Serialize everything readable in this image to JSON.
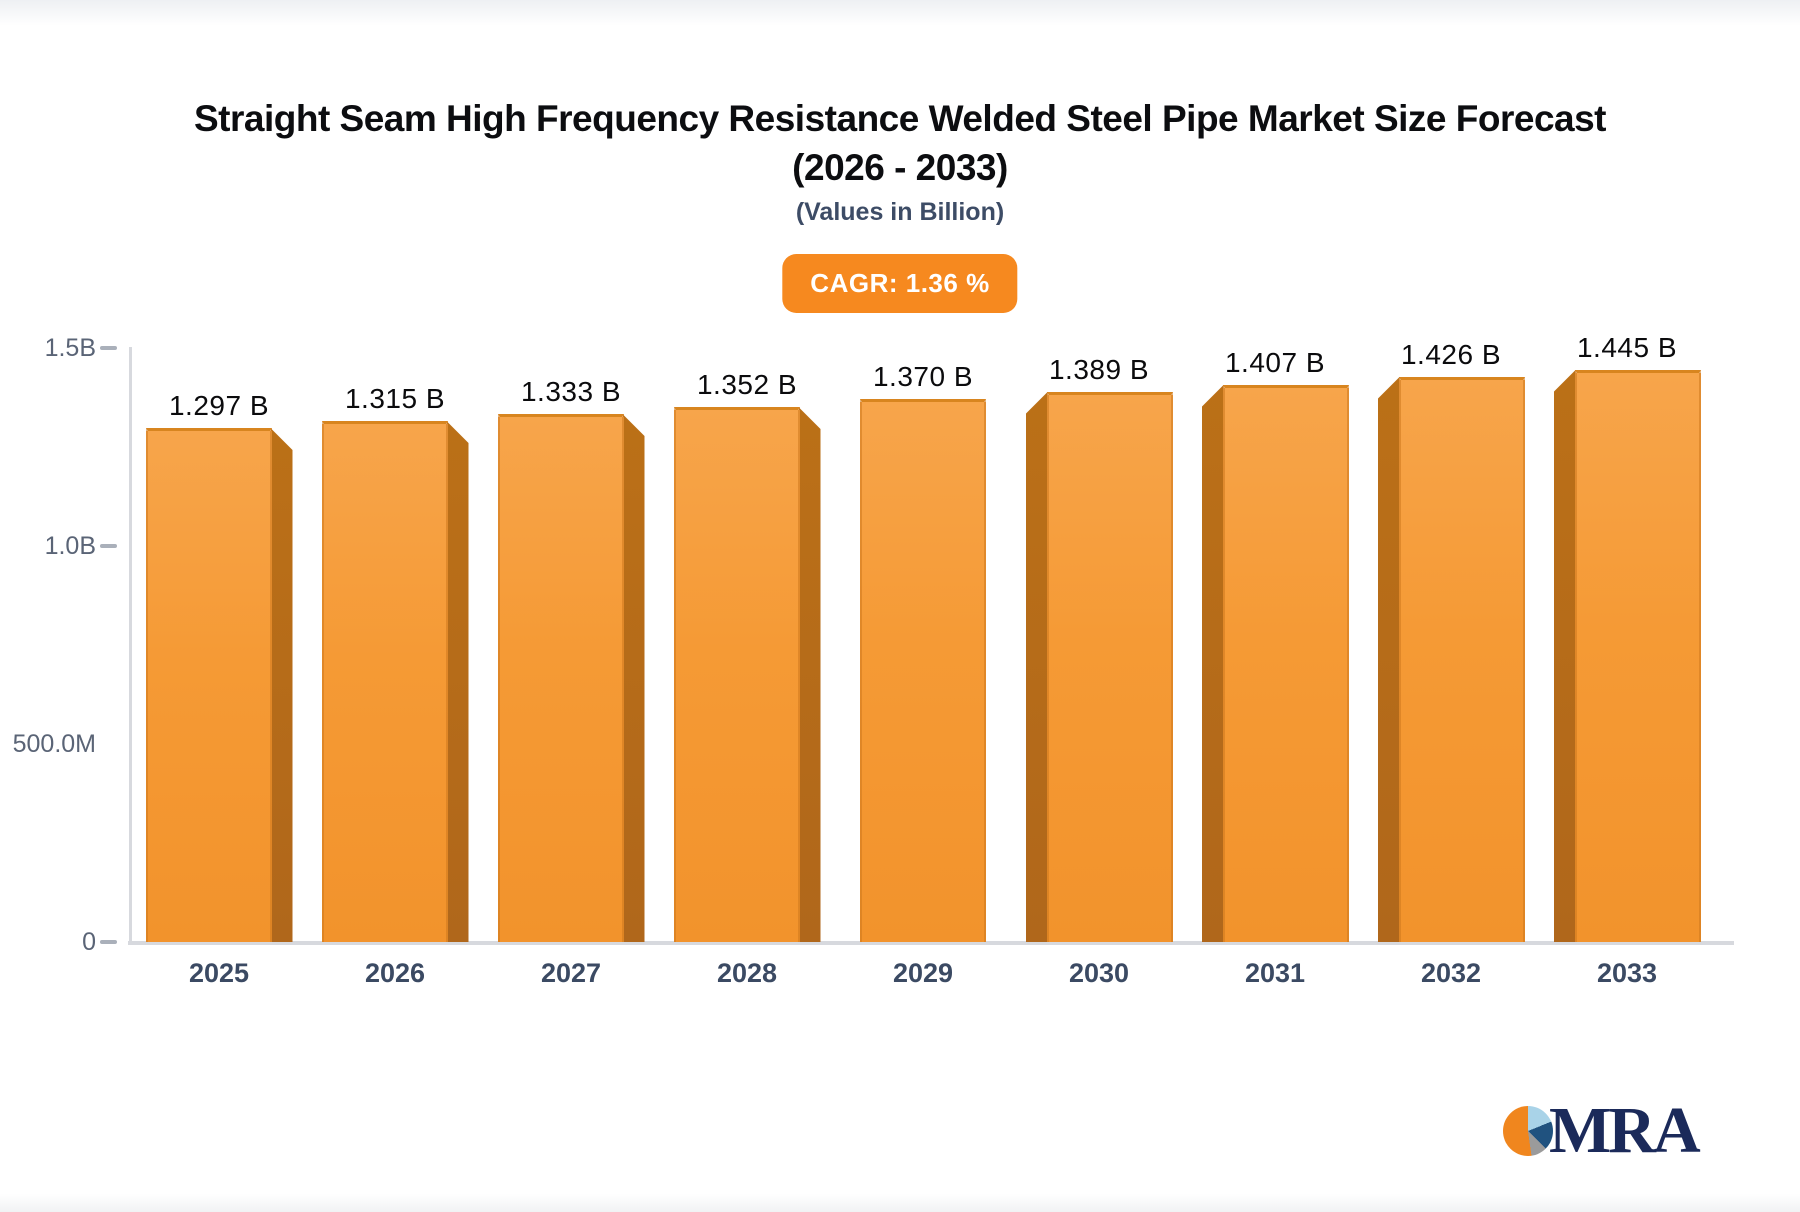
{
  "title": {
    "line1": "Straight Seam High Frequency Resistance Welded Steel Pipe Market Size Forecast",
    "line2": "(2026 - 2033)",
    "subtitle": "(Values in Billion)"
  },
  "cagr_badge": "CAGR: 1.36 %",
  "brand": {
    "name": "MRA"
  },
  "colors": {
    "bar_face": "#f59a35",
    "bar_side": "#b0671b",
    "badge_bg": "#f6891f",
    "axis_line": "#d7d9de",
    "x_label": "#3b4a63",
    "y_label": "#5a6476",
    "subtitle": "#3d4c66",
    "logo_navy": "#1b2a5a",
    "logo_lightblue": "#a9d3e8",
    "logo_darkblue": "#20527f",
    "logo_gray": "#9b9b9b",
    "logo_orange": "#f0861e"
  },
  "chart_data": {
    "type": "bar",
    "title": "Straight Seam High Frequency Resistance Welded Steel Pipe Market Size Forecast (2026 - 2033)",
    "subtitle": "(Values in Billion)",
    "unit": "Billion",
    "categories": [
      "2025",
      "2026",
      "2027",
      "2028",
      "2029",
      "2030",
      "2031",
      "2032",
      "2033"
    ],
    "values": [
      1.297,
      1.315,
      1.333,
      1.352,
      1.37,
      1.389,
      1.407,
      1.426,
      1.445
    ],
    "value_labels": [
      "1.297 B",
      "1.315 B",
      "1.333 B",
      "1.352 B",
      "1.370 B",
      "1.389 B",
      "1.407 B",
      "1.426 B",
      "1.445 B"
    ],
    "xlabel": "",
    "ylabel": "",
    "ylim": [
      0,
      1.5
    ],
    "grid": false,
    "legend": "none",
    "y_ticks": [
      {
        "label": "1.5B",
        "value": 1.5,
        "dash": true
      },
      {
        "label": "1.0B",
        "value": 1.0,
        "dash": true
      },
      {
        "label": "500.0M",
        "value": 0.5,
        "dash": false
      },
      {
        "label": "0",
        "value": 0.0,
        "dash": true
      }
    ]
  }
}
